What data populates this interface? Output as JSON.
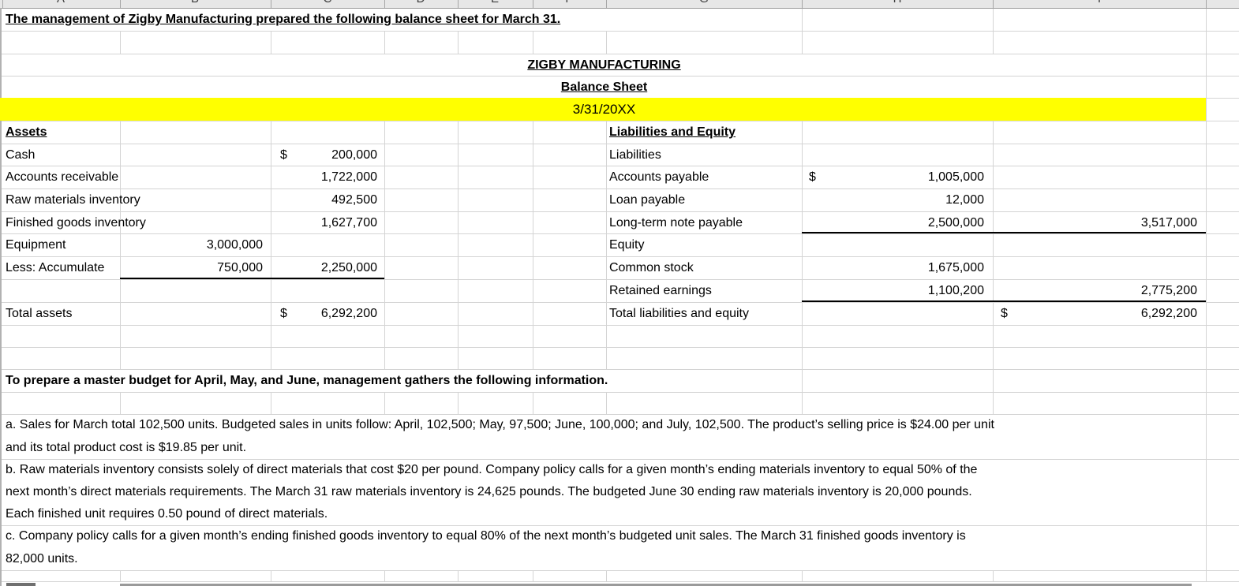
{
  "column_headers": [
    "A",
    "B",
    "C",
    "D",
    "E",
    "F",
    "G",
    "H",
    "I"
  ],
  "intro": "The management of Zigby Manufacturing prepared the following balance sheet for March 31.",
  "title": {
    "company": "ZIGBY MANUFACTURING",
    "report": "Balance Sheet",
    "date": "3/31/20XX",
    "highlight_color": "#FFFF00"
  },
  "assets": {
    "header": "Assets",
    "cash_label": "Cash",
    "cash_currency": "$",
    "cash_amount": "200,000",
    "ar_label": "Accounts receivable",
    "ar_amount": "1,722,000",
    "rm_label": "Raw materials inventory",
    "rm_amount": "492,500",
    "fg_label": "Finished goods inventory",
    "fg_amount": "1,627,700",
    "equip_label": "Equipment",
    "equip_amount": "3,000,000",
    "accdep_label": "Less: Accumulate",
    "accdep_amount": "750,000",
    "equip_net_amount": "2,250,000",
    "total_label": "Total assets",
    "total_currency": "$",
    "total_amount": "6,292,200"
  },
  "liabilities_equity": {
    "header": "Liabilities and Equity",
    "liabilities_section": "Liabilities",
    "ap_label": "Accounts payable",
    "ap_currency": "$",
    "ap_amount": "1,005,000",
    "loan_label": "Loan payable",
    "loan_amount": "12,000",
    "ltn_label": "Long-term note payable",
    "ltn_amount": "2,500,000",
    "liabilities_total_amount": "3,517,000",
    "equity_section": "Equity",
    "cs_label": "Common stock",
    "cs_amount": "1,675,000",
    "re_label": "Retained earnings",
    "re_amount": "1,100,200",
    "equity_total_amount": "2,775,200",
    "total_label": "Total liabilities and equity",
    "total_currency": "$",
    "total_amount": "6,292,200"
  },
  "budget_note": "To prepare a master budget for April, May, and June, management gathers the following information.",
  "notes": {
    "a": [
      "a. Sales for March total 102,500 units. Budgeted sales in units follow: April, 102,500; May, 97,500; June, 100,000; and July, 102,500. The product’s selling price is $24.00 per unit",
      "and its total product cost is $19.85 per unit."
    ],
    "b": [
      "b. Raw materials inventory consists solely of direct materials that cost $20 per pound. Company policy calls for a given month’s ending materials inventory to equal 50% of the",
      "next month’s direct materials requirements. The March 31 raw materials inventory is 24,625 pounds. The budgeted June 30 ending raw materials inventory is 20,000 pounds.",
      "Each finished unit requires 0.50 pound of direct materials."
    ],
    "c": [
      "c. Company policy calls for a given month’s ending finished goods inventory to equal 80% of the next month’s budgeted unit sales. The March 31 finished goods inventory is",
      "82,000 units."
    ]
  }
}
